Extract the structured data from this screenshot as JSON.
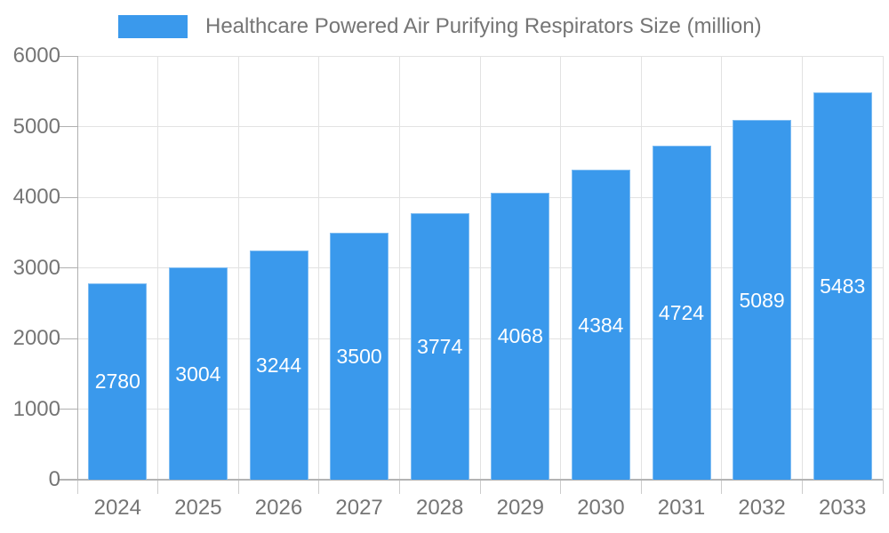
{
  "legend": {
    "label": "Healthcare Powered Air Purifying Respirators Size (million)"
  },
  "chart_data": {
    "type": "bar",
    "title": "Healthcare Powered Air Purifying Respirators Size (million)",
    "categories": [
      "2024",
      "2025",
      "2026",
      "2027",
      "2028",
      "2029",
      "2030",
      "2031",
      "2032",
      "2033"
    ],
    "values": [
      2780,
      3004,
      3244,
      3500,
      3774,
      4068,
      4384,
      4724,
      5089,
      5483
    ],
    "series": [
      {
        "name": "Healthcare Powered Air Purifying Respirators Size (million)",
        "values": [
          2780,
          3004,
          3244,
          3500,
          3774,
          4068,
          4384,
          4724,
          5089,
          5483
        ]
      }
    ],
    "xlabel": "",
    "ylabel": "",
    "ylim": [
      0,
      6000
    ],
    "yticks": [
      0,
      1000,
      2000,
      3000,
      4000,
      5000,
      6000
    ],
    "grid": true,
    "legend_position": "top",
    "bar_value_labels_visible": true,
    "colors": {
      "bar": "#3a99ec",
      "bar_value_label": "#ffffff",
      "axis_text": "#757575",
      "gridline": "#e2e2e2",
      "axis_line": "#b3b3b3",
      "background": "#ffffff"
    }
  }
}
